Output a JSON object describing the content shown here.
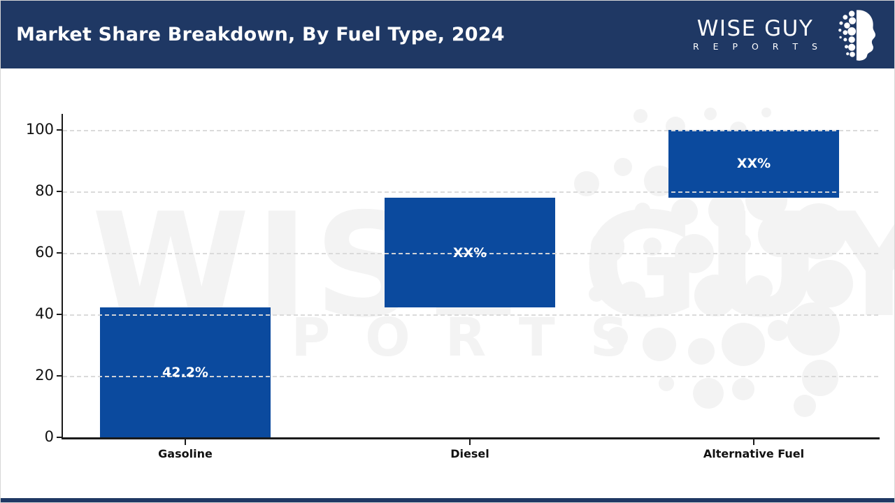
{
  "header": {
    "title": "Market Share Breakdown, By Fuel Type, 2024",
    "logo": {
      "line1": "WISE GUY",
      "line2": "R E P O R T S"
    }
  },
  "watermark": {
    "line1": "WISE GUY",
    "line2": "R E P O R T S"
  },
  "colors": {
    "header_bg": "#1f3864",
    "bar": "#0b4a9e",
    "axis": "#1a1a1a",
    "gridline": "#d9d9d9",
    "watermark": "#f3f3f3",
    "value_label_text": "#ffffff",
    "tick_text": "#111111"
  },
  "chart_data": {
    "type": "bar",
    "subtype": "waterfall",
    "title": "Market Share Breakdown, By Fuel Type, 2024",
    "categories": [
      "Gasoline",
      "Diesel",
      "Alternative Fuel"
    ],
    "segments": [
      {
        "category": "Gasoline",
        "start": 0,
        "end": 42.2,
        "label": "42.2%"
      },
      {
        "category": "Diesel",
        "start": 42.2,
        "end": 78,
        "label": "XX%"
      },
      {
        "category": "Alternative Fuel",
        "start": 78,
        "end": 100,
        "label": "XX%"
      }
    ],
    "ylim": [
      0,
      105
    ],
    "yticks": [
      0,
      20,
      40,
      60,
      80,
      100
    ],
    "grid": "horizontal-dashed",
    "legend": "none",
    "xlabel": "",
    "ylabel": ""
  }
}
